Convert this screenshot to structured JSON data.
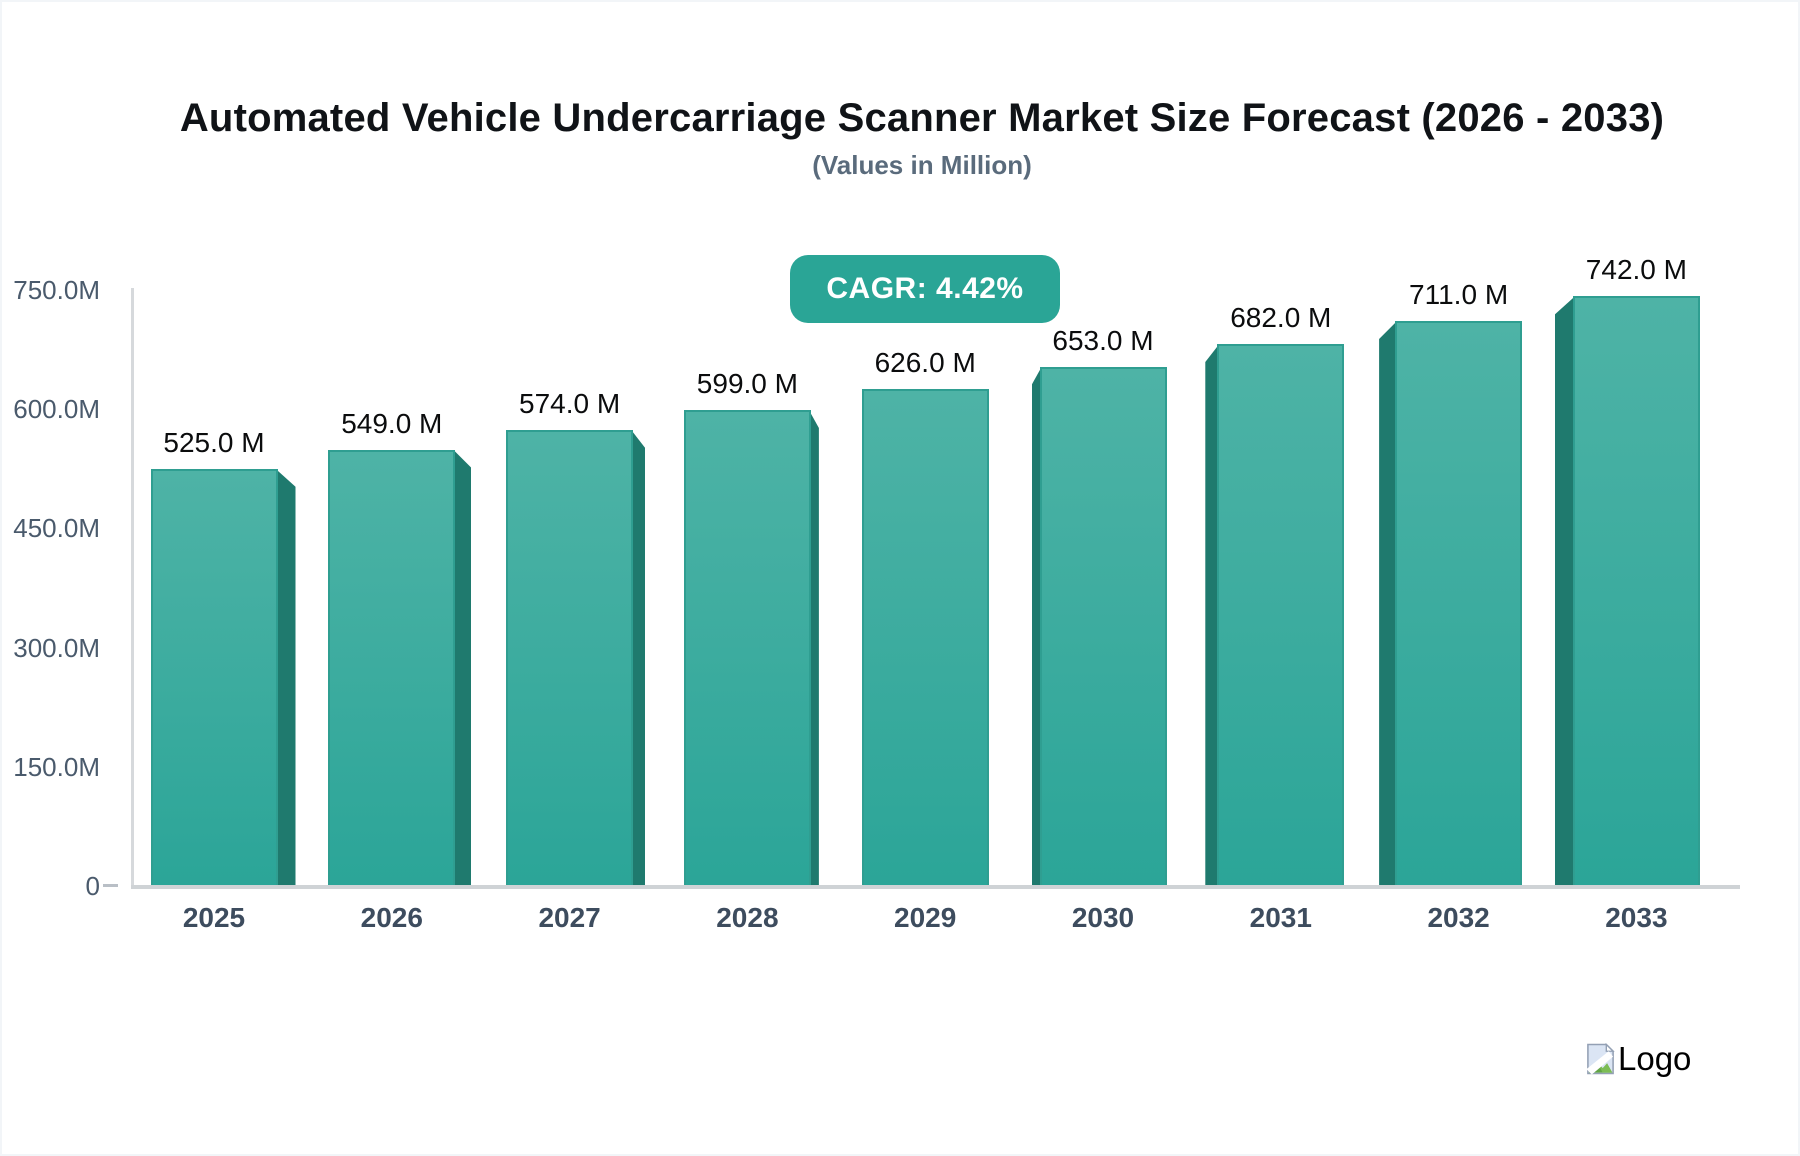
{
  "header": {
    "title": "Automated Vehicle Undercarriage Scanner Market Size Forecast (2026 - 2033)",
    "subtitle": "(Values in Million)"
  },
  "badge": {
    "label": "CAGR: 4.42%",
    "background": "#2aa596",
    "text_color": "#ffffff"
  },
  "chart_data": {
    "type": "bar",
    "title": "Automated Vehicle Undercarriage Scanner Market Size Forecast (2026 - 2033)",
    "subtitle": "(Values in Million)",
    "xlabel": "",
    "ylabel": "",
    "categories": [
      "2025",
      "2026",
      "2027",
      "2028",
      "2029",
      "2030",
      "2031",
      "2032",
      "2033"
    ],
    "values": [
      525,
      549,
      574,
      599,
      626,
      653,
      682,
      711,
      742
    ],
    "value_labels": [
      "525.0 M",
      "549.0 M",
      "574.0 M",
      "599.0 M",
      "626.0 M",
      "653.0 M",
      "682.0 M",
      "711.0 M",
      "742.0 M"
    ],
    "y_ticks": [
      {
        "value": 0,
        "label": "0"
      },
      {
        "value": 150,
        "label": "150.0M"
      },
      {
        "value": 300,
        "label": "300.0M"
      },
      {
        "value": 450,
        "label": "450.0M"
      },
      {
        "value": 600,
        "label": "600.0M"
      },
      {
        "value": 750,
        "label": "750.0M"
      }
    ],
    "ylim": [
      0,
      750
    ],
    "grid": false,
    "legend": false,
    "style_3d": true,
    "colors": {
      "bar_top": "#4eb3a6",
      "bar_bottom": "#2ba598",
      "bar_border": "#2f9e91",
      "bar_side": "#1f7a6e",
      "axis_line": "#d6d9dc",
      "baseline": "#cfd3d6",
      "tick_label": "#4a5a6c",
      "category_label": "#3d4c5e",
      "value_label": "#0b0c0d"
    }
  },
  "footer": {
    "logo_alt": "Logo"
  }
}
